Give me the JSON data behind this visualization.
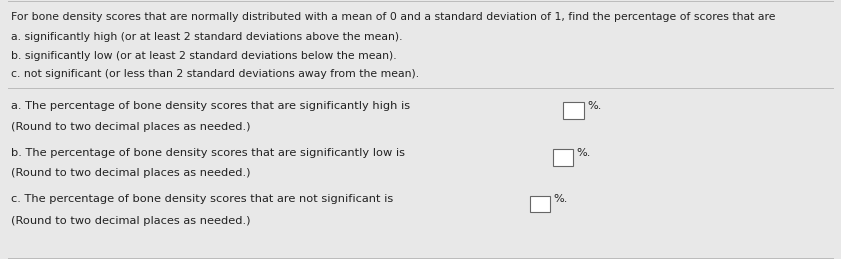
{
  "bg_color": "#e8e8e8",
  "panel_color": "#f2f2f2",
  "text_color": "#222222",
  "line_color": "#bbbbbb",
  "box_edge_color": "#666666",
  "box_fill_color": "#ffffff",
  "header_line1": "For bone density scores that are normally distributed with a mean of 0 and a standard deviation of 1, find the percentage of scores that are",
  "header_subs": [
    "a. significantly high (or at least 2 standard deviations above the mean).",
    "b. significantly low (or at least 2 standard deviations below the mean).",
    "c. not significant (or less than 2 standard deviations away from the mean)."
  ],
  "qa1": "a. The percentage of bone density scores that are significantly high is",
  "qa2": "(Round to two decimal places as needed.)",
  "qb1": "b. The percentage of bone density scores that are significantly low is",
  "qb2": "(Round to two decimal places as needed.)",
  "qc1": "c. The percentage of bone density scores that are not significant is",
  "qc2": "(Round to two decimal places as needed.)",
  "pct": "%.",
  "fs_header": 7.8,
  "fs_body": 8.2,
  "fig_w": 8.41,
  "fig_h": 2.59,
  "dpi": 100
}
